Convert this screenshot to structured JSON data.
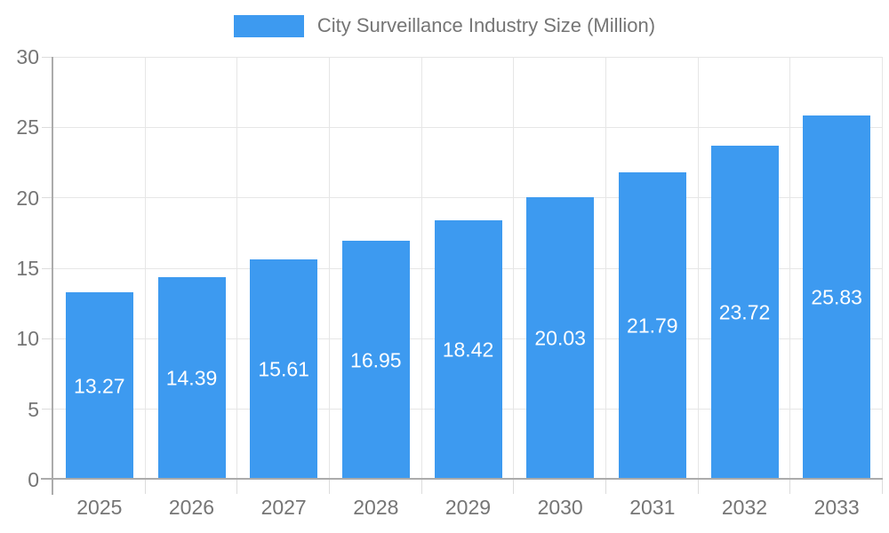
{
  "chart_data": {
    "type": "bar",
    "title": "City Surveillance Industry Size (Million)",
    "legend_position": "top",
    "categories": [
      "2025",
      "2026",
      "2027",
      "2028",
      "2029",
      "2030",
      "2031",
      "2032",
      "2033"
    ],
    "values": [
      13.27,
      14.39,
      15.61,
      16.95,
      18.42,
      20.03,
      21.79,
      23.72,
      25.83
    ],
    "value_labels": [
      "13.27",
      "14.39",
      "15.61",
      "16.95",
      "18.42",
      "20.03",
      "21.79",
      "23.72",
      "25.83"
    ],
    "xlabel": "",
    "ylabel": "",
    "ylim": [
      0,
      30
    ],
    "yticks": [
      0,
      5,
      10,
      15,
      20,
      25,
      30
    ],
    "grid": true,
    "colors": {
      "bar": "#3d9af0",
      "value_text": "#ffffff",
      "axis_text": "#757575",
      "gridline": "#e6e6e6",
      "axis_line": "#ababab"
    }
  }
}
